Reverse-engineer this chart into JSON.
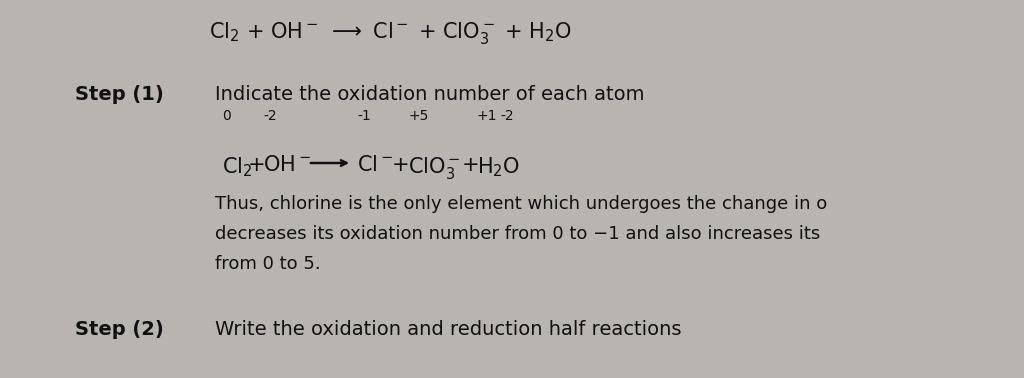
{
  "bg_color": "#b8b4b0",
  "text_color": "#111111",
  "step1_label": "Step (1)",
  "step1_text": "Indicate the oxidation number of each atom",
  "step2_label": "Step (2)",
  "step2_text": "Write the oxidation and reduction half reactions",
  "para_line1": "Thus, chlorine is the only element which undergoes the change in o",
  "para_line2": "decreases its oxidation number from 0 to −1 and also increases its",
  "para_line3": "from 0 to 5.",
  "figsize": [
    10.24,
    3.78
  ],
  "dpi": 100
}
